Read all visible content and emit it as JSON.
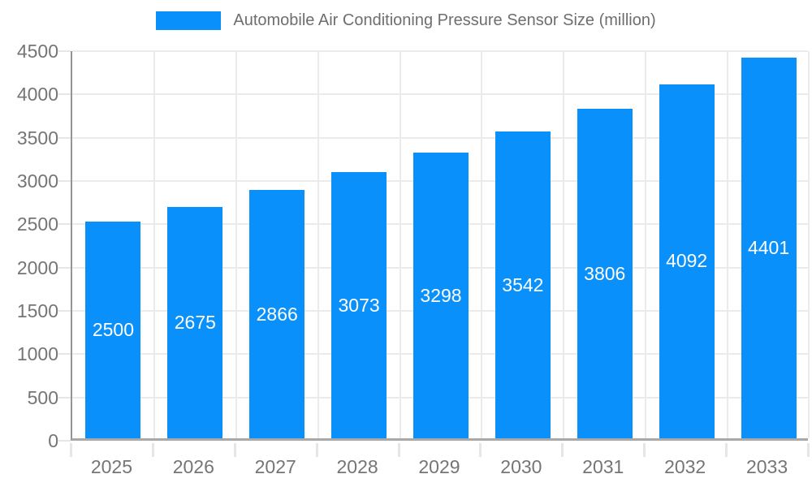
{
  "legend": {
    "label": "Automobile Air Conditioning Pressure Sensor Size (million)"
  },
  "colors": {
    "bar": "#0a90fa",
    "grid": "#ebebeb",
    "tick": "#e6e6e6",
    "axis_y": "#949494",
    "axis_x": "#a9a9a9",
    "tick_label": "#757575",
    "legend_text": "#6e6e6e",
    "value_label": "#ffffff",
    "background": "#ffffff"
  },
  "chart_data": {
    "type": "bar",
    "title": "Automobile Air Conditioning Pressure Sensor Size (million)",
    "categories": [
      "2025",
      "2026",
      "2027",
      "2028",
      "2029",
      "2030",
      "2031",
      "2032",
      "2033"
    ],
    "values": [
      2500,
      2675,
      2866,
      3073,
      3298,
      3542,
      3806,
      4092,
      4401
    ],
    "xlabel": "",
    "ylabel": "",
    "ylim": [
      0,
      4500
    ],
    "ytick_step": 500,
    "yticks": [
      0,
      500,
      1000,
      1500,
      2000,
      2500,
      3000,
      3500,
      4000,
      4500
    ],
    "grid": true,
    "legend_position": "top-center",
    "value_labels": "inside-center"
  }
}
